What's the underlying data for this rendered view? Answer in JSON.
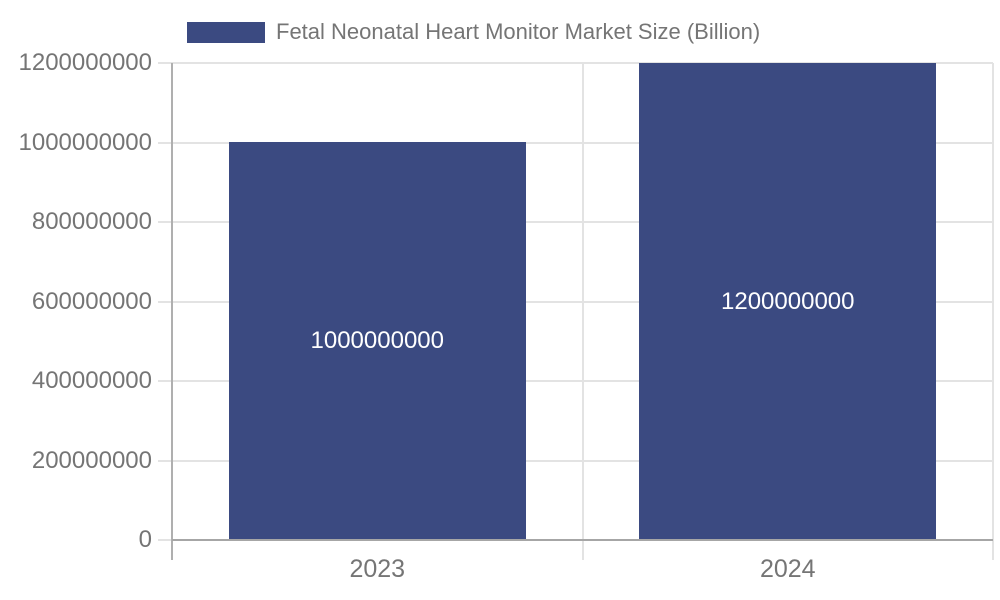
{
  "legend": {
    "label": "Fetal Neonatal Heart Monitor Market Size (Billion)",
    "position": "top"
  },
  "chart_data": {
    "type": "bar",
    "categories": [
      "2023",
      "2024"
    ],
    "series": [
      {
        "name": "Fetal Neonatal Heart Monitor Market Size (Billion)",
        "values": [
          1000000000,
          1200000000
        ]
      }
    ],
    "bar_value_labels": [
      "1000000000",
      "1200000000"
    ],
    "y_ticks": [
      0,
      200000000,
      400000000,
      600000000,
      800000000,
      1000000000,
      1200000000
    ],
    "y_tick_labels": [
      "0",
      "200000000",
      "400000000",
      "600000000",
      "800000000",
      "1000000000",
      "1200000000"
    ],
    "ylim": [
      0,
      1200000000
    ],
    "grid": true,
    "legend_position": "top",
    "colors": {
      "bar": "#3B4A81",
      "bar_label_text": "#FFFFFF",
      "gridline": "#E3E3E3",
      "x_axis_line": "#A6A6A6",
      "y_axis_line": "#AFAFAF",
      "category_boundary": "#E3E3E3",
      "axis_text": "#757575",
      "legend_text": "#757575",
      "background": "#FFFFFF"
    }
  }
}
